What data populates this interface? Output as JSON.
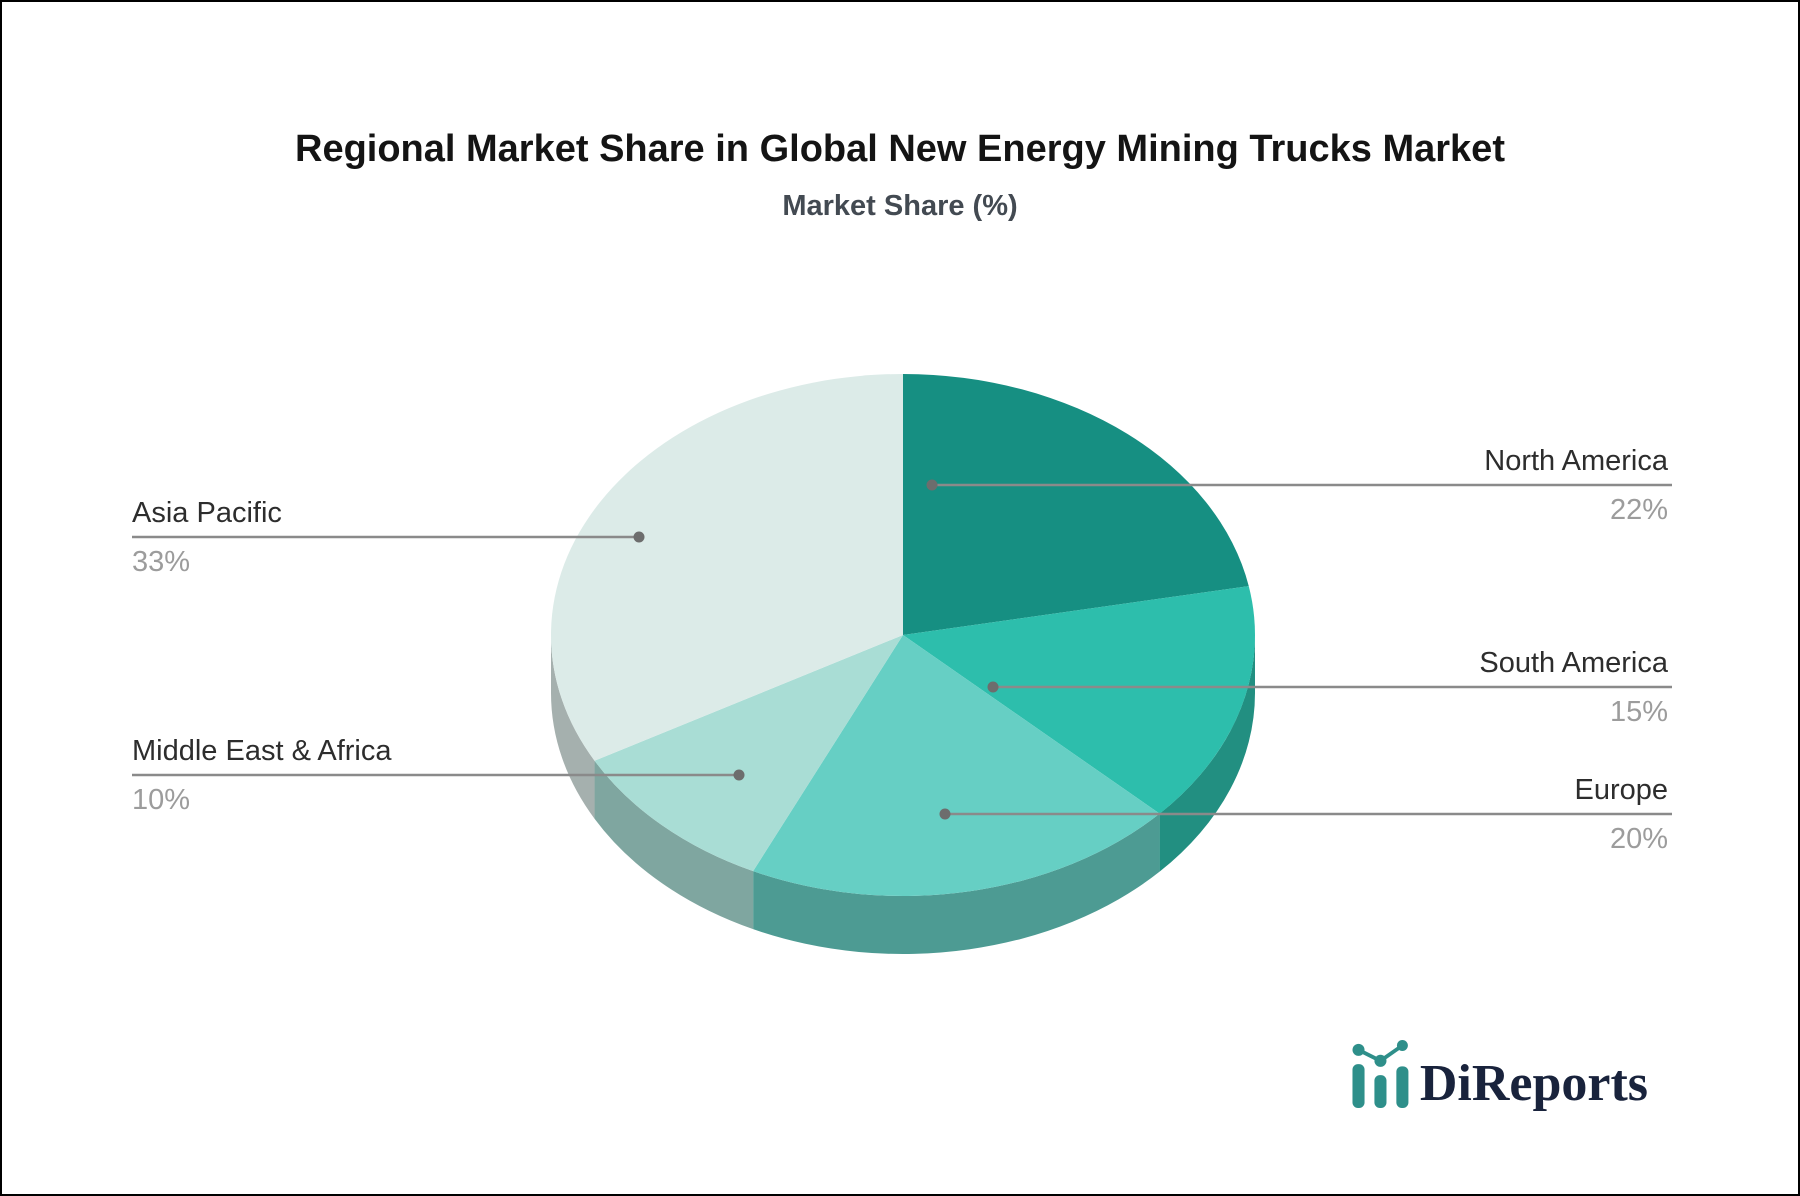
{
  "page": {
    "title": "Regional Market Share in Global New Energy Mining Trucks Market",
    "subtitle": "Market Share (%)"
  },
  "chart_data": {
    "type": "pie",
    "title": "Regional Market Share in Global New Energy Mining Trucks Market",
    "subtitle": "Market Share (%)",
    "unit": "%",
    "style": "3d",
    "direction": "clockwise",
    "start_angle_deg": 0,
    "legend_position": "none",
    "categories": [
      "North America",
      "South America",
      "Europe",
      "Middle East & Africa",
      "Asia Pacific"
    ],
    "values": [
      22,
      15,
      20,
      10,
      33
    ],
    "labels_pct": [
      "22%",
      "15%",
      "20%",
      "10%",
      "33%"
    ],
    "colors": [
      "#168f82",
      "#2dbeac",
      "#66cfc4",
      "#a9ddd5",
      "#dcebe8"
    ],
    "connector_color": "#8a8a8a",
    "label_color": "#2d2d2d",
    "value_color": "#9c9c9c"
  },
  "branding": {
    "logo_text": "DiReports",
    "logo_icon": "bar-chart-with-trendline-icon",
    "logo_icon_color": "#2e8f8a",
    "logo_text_color": "#19233c"
  }
}
